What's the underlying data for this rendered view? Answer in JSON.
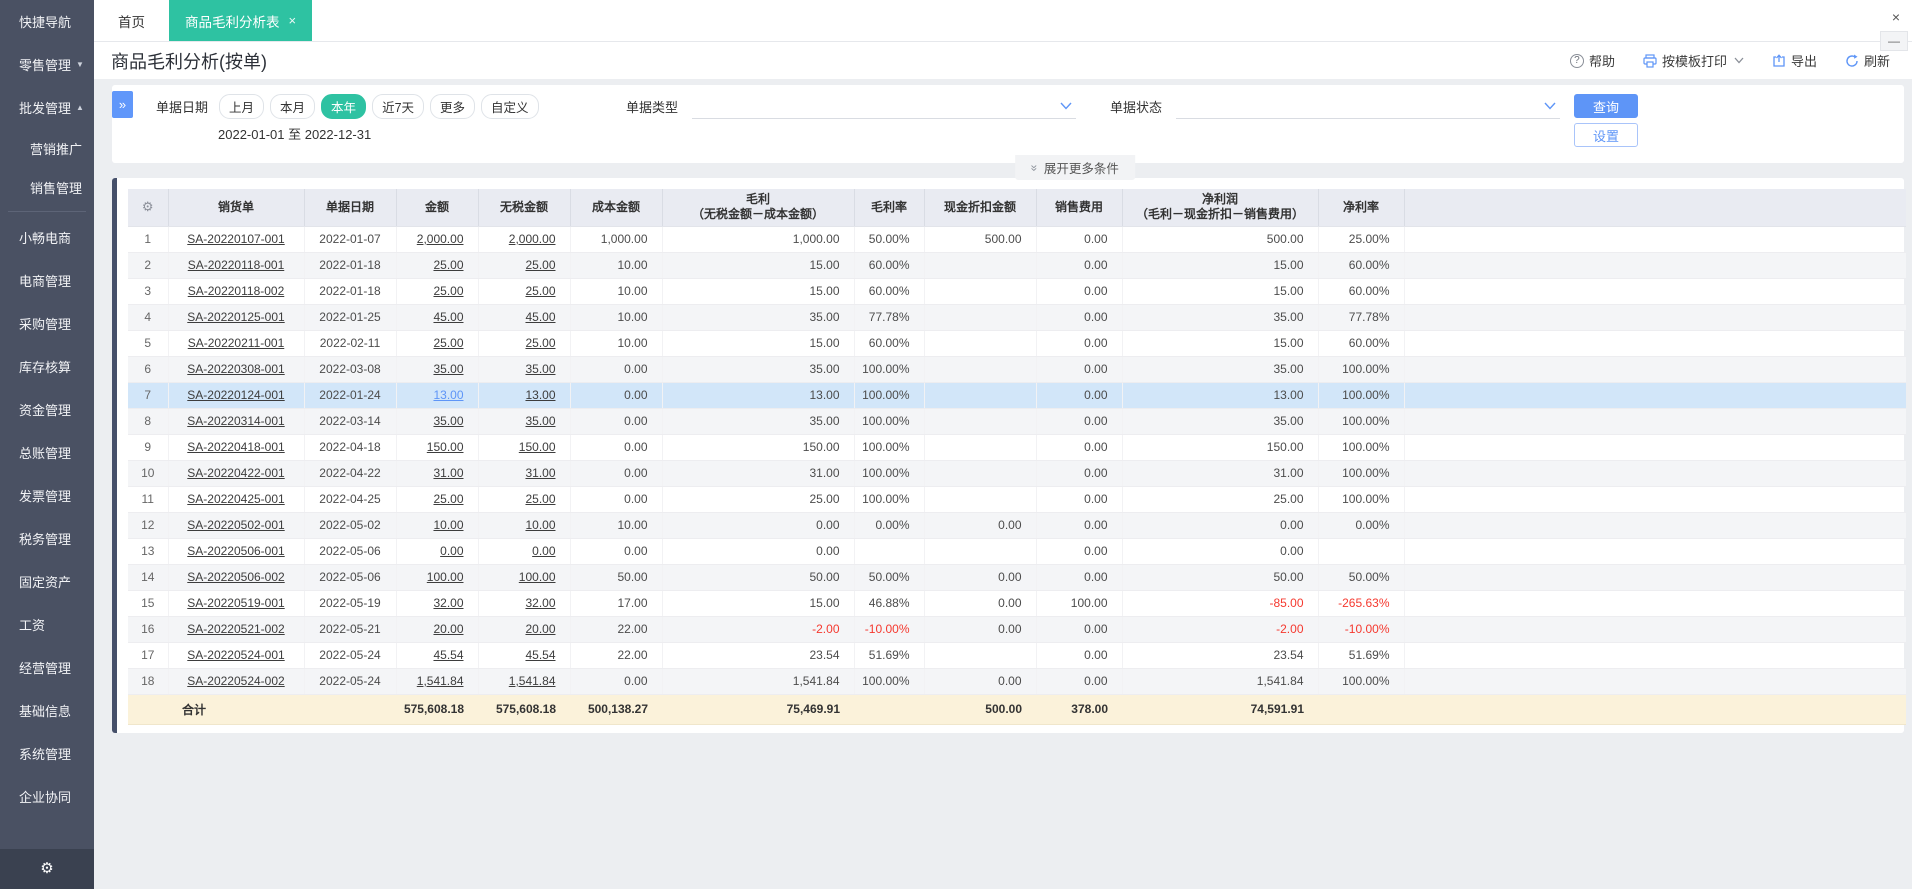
{
  "sidebar": {
    "items": [
      {
        "label": "快捷导航",
        "type": "top"
      },
      {
        "label": "零售管理",
        "type": "top",
        "arrow": "down"
      },
      {
        "label": "批发管理",
        "type": "top",
        "arrow": "up"
      },
      {
        "label": "营销推广",
        "type": "sub"
      },
      {
        "label": "销售管理",
        "type": "sub"
      },
      {
        "label": "divider",
        "type": "divider"
      },
      {
        "label": "小畅电商",
        "type": "top"
      },
      {
        "label": "电商管理",
        "type": "top"
      },
      {
        "label": "采购管理",
        "type": "top"
      },
      {
        "label": "库存核算",
        "type": "top"
      },
      {
        "label": "资金管理",
        "type": "top"
      },
      {
        "label": "总账管理",
        "type": "top"
      },
      {
        "label": "发票管理",
        "type": "top"
      },
      {
        "label": "税务管理",
        "type": "top"
      },
      {
        "label": "固定资产",
        "type": "top"
      },
      {
        "label": "工资",
        "type": "top"
      },
      {
        "label": "经营管理",
        "type": "top"
      },
      {
        "label": "基础信息",
        "type": "top"
      },
      {
        "label": "系统管理",
        "type": "top"
      },
      {
        "label": "企业协同",
        "type": "top"
      }
    ],
    "gear_icon": "⚙"
  },
  "tabs": {
    "home": "首页",
    "active": "商品毛利分析表",
    "close_icon": "×"
  },
  "window": {
    "close_icon": "×",
    "collapse_icon": "—"
  },
  "page": {
    "title": "商品毛利分析(按单)"
  },
  "toolbar": {
    "help": "帮助",
    "print": "按模板打印",
    "export": "导出",
    "refresh": "刷新",
    "help_glyph": "?"
  },
  "filters": {
    "date_label": "单据日期",
    "date_options": [
      "上月",
      "本月",
      "本年",
      "近7天",
      "更多",
      "自定义"
    ],
    "date_selected": "本年",
    "date_range": "2022-01-01 至 2022-12-31",
    "type_label": "单据类型",
    "status_label": "单据状态",
    "search_button": "查询",
    "settings_button": "设置",
    "expand_more": "展开更多条件",
    "expander_glyph": "»"
  },
  "colors": {
    "accent_teal": "#2ec2a2",
    "accent_blue": "#5e95f7",
    "negative_red": "#f5392f",
    "sidebar_bg": "#4a5163",
    "total_row_bg": "#fbf2da"
  },
  "table": {
    "headers": [
      {
        "main": "销货单"
      },
      {
        "main": "单据日期"
      },
      {
        "main": "金额"
      },
      {
        "main": "无税金额"
      },
      {
        "main": "成本金额"
      },
      {
        "main": "毛利",
        "sub": "（无税金额－成本金额）"
      },
      {
        "main": "毛利率"
      },
      {
        "main": "现金折扣金额"
      },
      {
        "main": "销售费用"
      },
      {
        "main": "净利润",
        "sub": "（毛利－现金折扣－销售费用）"
      },
      {
        "main": "净利率"
      }
    ],
    "rows": [
      {
        "n": 1,
        "order": "SA-20220107-001",
        "date": "2022-01-07",
        "amount": "2,000.00",
        "tax_free": "2,000.00",
        "cost": "1,000.00",
        "profit": "1,000.00",
        "profit_rate": "50.00%",
        "discount": "500.00",
        "expense": "0.00",
        "net": "500.00",
        "net_rate": "25.00%",
        "selected": false
      },
      {
        "n": 2,
        "order": "SA-20220118-001",
        "date": "2022-01-18",
        "amount": "25.00",
        "tax_free": "25.00",
        "cost": "10.00",
        "profit": "15.00",
        "profit_rate": "60.00%",
        "discount": "",
        "expense": "0.00",
        "net": "15.00",
        "net_rate": "60.00%",
        "selected": false
      },
      {
        "n": 3,
        "order": "SA-20220118-002",
        "date": "2022-01-18",
        "amount": "25.00",
        "tax_free": "25.00",
        "cost": "10.00",
        "profit": "15.00",
        "profit_rate": "60.00%",
        "discount": "",
        "expense": "0.00",
        "net": "15.00",
        "net_rate": "60.00%",
        "selected": false
      },
      {
        "n": 4,
        "order": "SA-20220125-001",
        "date": "2022-01-25",
        "amount": "45.00",
        "tax_free": "45.00",
        "cost": "10.00",
        "profit": "35.00",
        "profit_rate": "77.78%",
        "discount": "",
        "expense": "0.00",
        "net": "35.00",
        "net_rate": "77.78%",
        "selected": false
      },
      {
        "n": 5,
        "order": "SA-20220211-001",
        "date": "2022-02-11",
        "amount": "25.00",
        "tax_free": "25.00",
        "cost": "10.00",
        "profit": "15.00",
        "profit_rate": "60.00%",
        "discount": "",
        "expense": "0.00",
        "net": "15.00",
        "net_rate": "60.00%",
        "selected": false
      },
      {
        "n": 6,
        "order": "SA-20220308-001",
        "date": "2022-03-08",
        "amount": "35.00",
        "tax_free": "35.00",
        "cost": "0.00",
        "profit": "35.00",
        "profit_rate": "100.00%",
        "discount": "",
        "expense": "0.00",
        "net": "35.00",
        "net_rate": "100.00%",
        "selected": false
      },
      {
        "n": 7,
        "order": "SA-20220124-001",
        "date": "2022-01-24",
        "amount": "13.00",
        "tax_free": "13.00",
        "cost": "0.00",
        "profit": "13.00",
        "profit_rate": "100.00%",
        "discount": "",
        "expense": "0.00",
        "net": "13.00",
        "net_rate": "100.00%",
        "selected": true
      },
      {
        "n": 8,
        "order": "SA-20220314-001",
        "date": "2022-03-14",
        "amount": "35.00",
        "tax_free": "35.00",
        "cost": "0.00",
        "profit": "35.00",
        "profit_rate": "100.00%",
        "discount": "",
        "expense": "0.00",
        "net": "35.00",
        "net_rate": "100.00%",
        "selected": false
      },
      {
        "n": 9,
        "order": "SA-20220418-001",
        "date": "2022-04-18",
        "amount": "150.00",
        "tax_free": "150.00",
        "cost": "0.00",
        "profit": "150.00",
        "profit_rate": "100.00%",
        "discount": "",
        "expense": "0.00",
        "net": "150.00",
        "net_rate": "100.00%",
        "selected": false
      },
      {
        "n": 10,
        "order": "SA-20220422-001",
        "date": "2022-04-22",
        "amount": "31.00",
        "tax_free": "31.00",
        "cost": "0.00",
        "profit": "31.00",
        "profit_rate": "100.00%",
        "discount": "",
        "expense": "0.00",
        "net": "31.00",
        "net_rate": "100.00%",
        "selected": false
      },
      {
        "n": 11,
        "order": "SA-20220425-001",
        "date": "2022-04-25",
        "amount": "25.00",
        "tax_free": "25.00",
        "cost": "0.00",
        "profit": "25.00",
        "profit_rate": "100.00%",
        "discount": "",
        "expense": "0.00",
        "net": "25.00",
        "net_rate": "100.00%",
        "selected": false
      },
      {
        "n": 12,
        "order": "SA-20220502-001",
        "date": "2022-05-02",
        "amount": "10.00",
        "tax_free": "10.00",
        "cost": "10.00",
        "profit": "0.00",
        "profit_rate": "0.00%",
        "discount": "0.00",
        "expense": "0.00",
        "net": "0.00",
        "net_rate": "0.00%",
        "selected": false
      },
      {
        "n": 13,
        "order": "SA-20220506-001",
        "date": "2022-05-06",
        "amount": "0.00",
        "tax_free": "0.00",
        "cost": "0.00",
        "profit": "0.00",
        "profit_rate": "",
        "discount": "",
        "expense": "0.00",
        "net": "0.00",
        "net_rate": "",
        "selected": false
      },
      {
        "n": 14,
        "order": "SA-20220506-002",
        "date": "2022-05-06",
        "amount": "100.00",
        "tax_free": "100.00",
        "cost": "50.00",
        "profit": "50.00",
        "profit_rate": "50.00%",
        "discount": "0.00",
        "expense": "0.00",
        "net": "50.00",
        "net_rate": "50.00%",
        "selected": false
      },
      {
        "n": 15,
        "order": "SA-20220519-001",
        "date": "2022-05-19",
        "amount": "32.00",
        "tax_free": "32.00",
        "cost": "17.00",
        "profit": "15.00",
        "profit_rate": "46.88%",
        "discount": "0.00",
        "expense": "100.00",
        "net": "-85.00",
        "net_rate": "-265.63%",
        "selected": false
      },
      {
        "n": 16,
        "order": "SA-20220521-002",
        "date": "2022-05-21",
        "amount": "20.00",
        "tax_free": "20.00",
        "cost": "22.00",
        "profit": "-2.00",
        "profit_rate": "-10.00%",
        "discount": "0.00",
        "expense": "0.00",
        "net": "-2.00",
        "net_rate": "-10.00%",
        "selected": false
      },
      {
        "n": 17,
        "order": "SA-20220524-001",
        "date": "2022-05-24",
        "amount": "45.54",
        "tax_free": "45.54",
        "cost": "22.00",
        "profit": "23.54",
        "profit_rate": "51.69%",
        "discount": "",
        "expense": "0.00",
        "net": "23.54",
        "net_rate": "51.69%",
        "selected": false
      },
      {
        "n": 18,
        "order": "SA-20220524-002",
        "date": "2022-05-24",
        "amount": "1,541.84",
        "tax_free": "1,541.84",
        "cost": "0.00",
        "profit": "1,541.84",
        "profit_rate": "100.00%",
        "discount": "0.00",
        "expense": "0.00",
        "net": "1,541.84",
        "net_rate": "100.00%",
        "selected": false
      }
    ],
    "total": {
      "label": "合计",
      "amount": "575,608.18",
      "tax_free": "575,608.18",
      "cost": "500,138.27",
      "profit": "75,469.91",
      "profit_rate": "",
      "discount": "500.00",
      "expense": "378.00",
      "net": "74,591.91",
      "net_rate": ""
    }
  }
}
